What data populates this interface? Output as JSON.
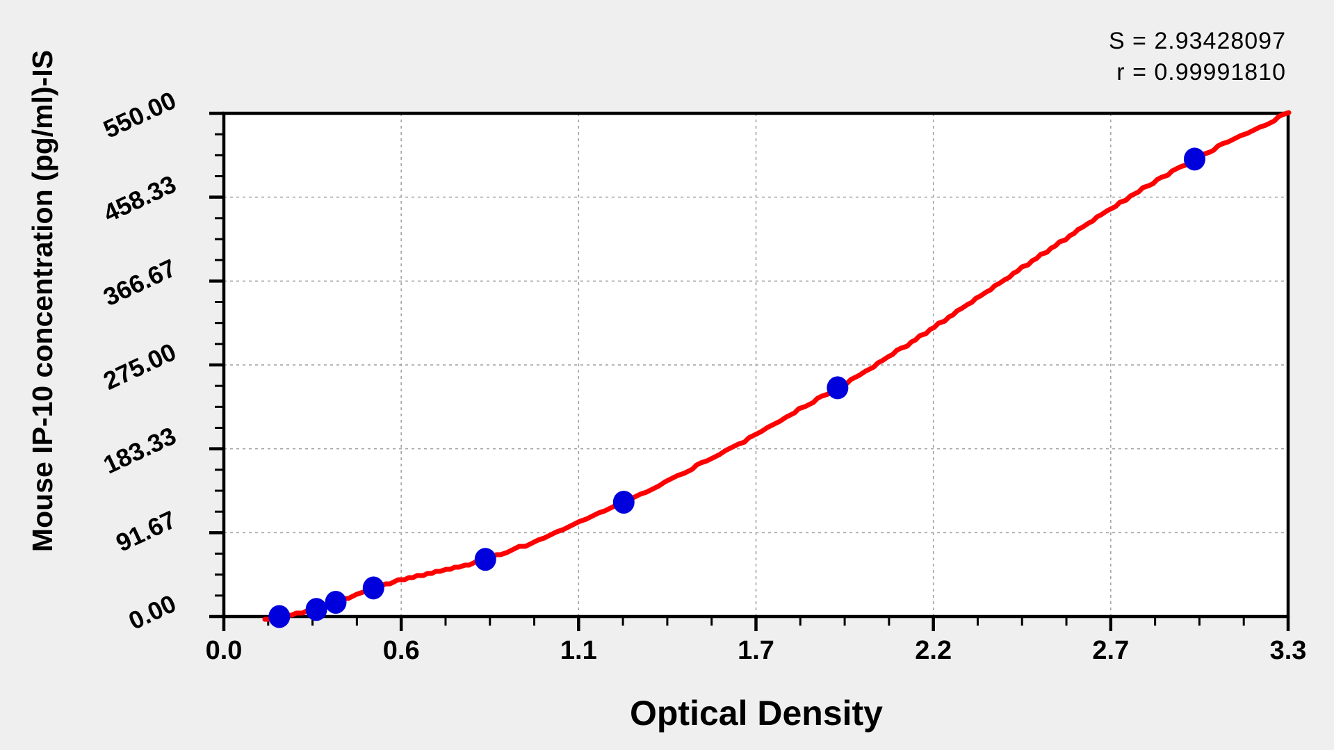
{
  "stats": {
    "s_line": "S = 2.93428097",
    "r_line": "r = 0.99991810"
  },
  "chart_data": {
    "type": "scatter",
    "title": "",
    "xlabel": "Optical Density",
    "ylabel": "Mouse IP-10 concentration (pg/ml)-IS",
    "xlim": [
      0,
      3.3
    ],
    "ylim": [
      0,
      550
    ],
    "x_tick_values": [
      0,
      0.55,
      1.1,
      1.65,
      2.2,
      2.75,
      3.3
    ],
    "x_tick_labels": [
      "0.0",
      "0.6",
      "1.1",
      "1.7",
      "2.2",
      "2.7",
      "3.3"
    ],
    "y_tick_values": [
      0,
      91.67,
      183.33,
      275,
      366.67,
      458.33,
      550
    ],
    "y_tick_labels": [
      "0.00",
      "91.67",
      "183.33",
      "275.00",
      "366.67",
      "458.33",
      "550.00"
    ],
    "minor_ticks_per_interval": 3,
    "grid": "dashed gray lines at interior major ticks, plot area white, figure background light gray",
    "legend_position": "none",
    "stats": {
      "S": "2.93428097",
      "r": "0.99991810"
    },
    "series": [
      {
        "name": "standard-points",
        "type": "scatter",
        "color": "#0000dd",
        "points": [
          [
            0.172,
            0
          ],
          [
            0.287,
            7.8
          ],
          [
            0.347,
            15.6
          ],
          [
            0.464,
            31.25
          ],
          [
            0.811,
            62.5
          ],
          [
            1.24,
            125
          ],
          [
            1.903,
            250
          ],
          [
            3.01,
            500
          ]
        ]
      },
      {
        "name": "fitted-curve",
        "type": "line",
        "color": "#fe0000",
        "points": [
          [
            0.125,
            -3
          ],
          [
            0.172,
            0
          ],
          [
            0.287,
            7.8
          ],
          [
            0.347,
            15.6
          ],
          [
            0.464,
            31.25
          ],
          [
            0.811,
            62.5
          ],
          [
            1.24,
            125
          ],
          [
            1.903,
            250
          ],
          [
            3.01,
            500
          ],
          [
            3.3,
            550
          ]
        ]
      }
    ],
    "colors": {
      "curve": "#fe0000",
      "point": "#0000dd",
      "grid": "#9e9e9e",
      "frame": "#000000",
      "plot_bg": "#ffffff",
      "fig_bg": "#efefef"
    }
  }
}
